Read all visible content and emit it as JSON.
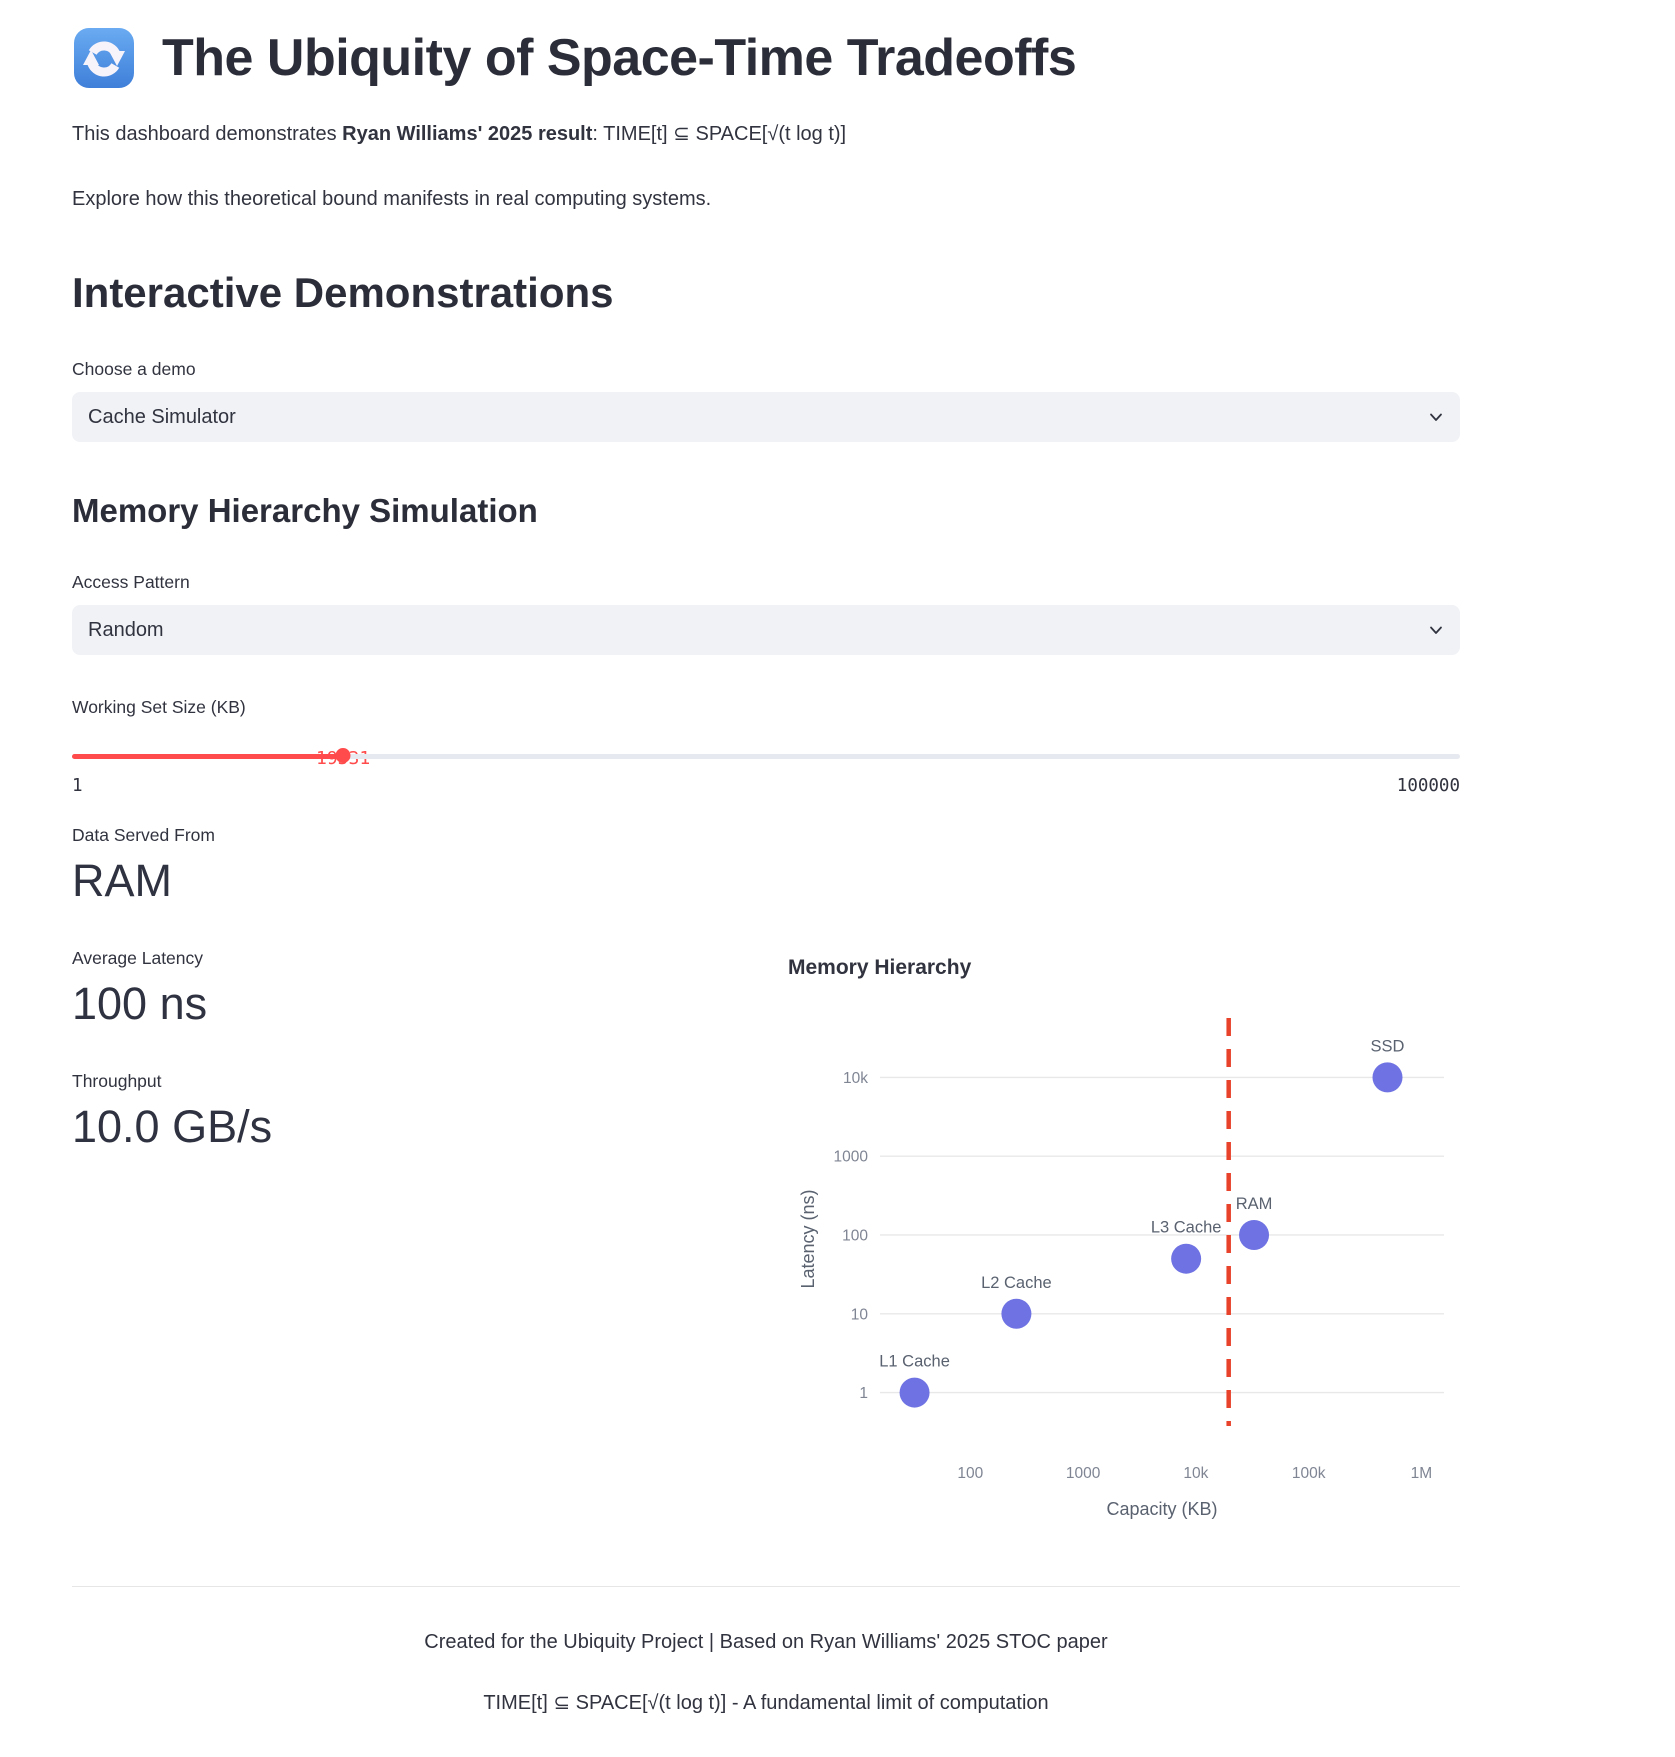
{
  "theme": {
    "accent": "#ff4b4b",
    "text": "#31333f",
    "secondary_background": "#f0f2f6"
  },
  "header": {
    "icon": "refresh-arrows-icon",
    "title": "The Ubiquity of Space-Time Tradeoffs"
  },
  "intro": {
    "line1_prefix": "This dashboard demonstrates ",
    "line1_bold": "Ryan Williams' 2025 result",
    "line1_suffix": ": TIME[t] ⊆ SPACE[√(t log t)]",
    "line2": "Explore how this theoretical bound manifests in real computing systems."
  },
  "demos": {
    "title": "Interactive Demonstrations",
    "choose_label": "Choose a demo",
    "selected": "Cache Simulator"
  },
  "sim": {
    "title": "Memory Hierarchy Simulation",
    "access_label": "Access Pattern",
    "access_value": "Random",
    "slider": {
      "label": "Working Set Size (KB)",
      "value": 19531,
      "min": 1,
      "max": 100000,
      "accent": "#ff4b4b"
    },
    "metrics": [
      {
        "label": "Data Served From",
        "value": "RAM"
      },
      {
        "label": "Average Latency",
        "value": "100 ns"
      },
      {
        "label": "Throughput",
        "value": "10.0 GB/s"
      }
    ]
  },
  "chart_data": {
    "type": "scatter",
    "title": "Memory Hierarchy",
    "xlabel": "Capacity (KB)",
    "ylabel": "Latency (ns)",
    "x_scale": "log",
    "y_scale": "log",
    "xlim": [
      15.8,
      1584893
    ],
    "ylim": [
      0.25,
      31623
    ],
    "grid": "horizontal",
    "legend": "none",
    "marker_color": "#6e72e2",
    "marker_radius_px": 15,
    "x_ticks": [
      {
        "v": 100,
        "label": "100"
      },
      {
        "v": 1000,
        "label": "1000"
      },
      {
        "v": 10000,
        "label": "10k"
      },
      {
        "v": 100000,
        "label": "100k"
      },
      {
        "v": 1000000,
        "label": "1M"
      }
    ],
    "y_ticks": [
      {
        "v": 1,
        "label": "1"
      },
      {
        "v": 10,
        "label": "10"
      },
      {
        "v": 100,
        "label": "100"
      },
      {
        "v": 1000,
        "label": "1000"
      },
      {
        "v": 10000,
        "label": "10k"
      }
    ],
    "points": [
      {
        "name": "L1 Cache",
        "capacity_kb": 32,
        "latency_ns": 1
      },
      {
        "name": "L2 Cache",
        "capacity_kb": 256,
        "latency_ns": 10
      },
      {
        "name": "L3 Cache",
        "capacity_kb": 8192,
        "latency_ns": 50
      },
      {
        "name": "RAM",
        "capacity_kb": 32768,
        "latency_ns": 100
      },
      {
        "name": "SSD",
        "capacity_kb": 500000,
        "latency_ns": 10000
      }
    ],
    "vline": {
      "x": 19531,
      "style": "dashed",
      "color": "#e8422a",
      "width": 4.5
    }
  },
  "footer": {
    "line1": "Created for the Ubiquity Project | Based on Ryan Williams' 2025 STOC paper",
    "line2": "TIME[t] ⊆ SPACE[√(t log t)] - A fundamental limit of computation"
  }
}
